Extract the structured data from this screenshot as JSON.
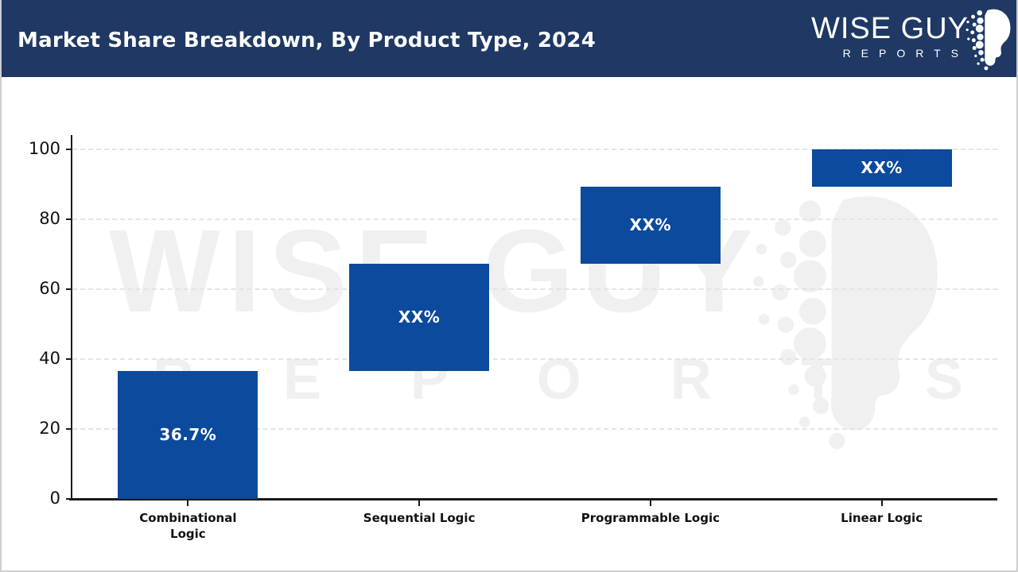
{
  "header": {
    "title": "Market Share Breakdown, By Product Type, 2024",
    "background_color": "#1f3864",
    "logo": {
      "line1": "WISE GUY",
      "line2": "REPORTS",
      "icon": "dotted-head-profile-icon"
    }
  },
  "watermark": {
    "line1": "WISE GUY",
    "line2": "R E P O R T S",
    "icon": "dotted-head-profile-icon",
    "color": "#f0f0f0"
  },
  "chart_data": {
    "type": "bar",
    "subtype": "floating-waterfall",
    "title": "Market Share Breakdown, By Product Type, 2024",
    "categories": [
      "Combinational Logic",
      "Sequential Logic",
      "Programmable Logic",
      "Linear Logic"
    ],
    "category_display": [
      "Combinational\nLogic",
      "Sequential Logic",
      "Programmable Logic",
      "Linear Logic"
    ],
    "series": [
      {
        "name": "Market Share (%)",
        "segments": [
          {
            "category": "Combinational Logic",
            "start": 0,
            "end": 36.7,
            "label": "36.7%"
          },
          {
            "category": "Sequential Logic",
            "start": 36.7,
            "end": 67.2,
            "label": "XX%"
          },
          {
            "category": "Programmable Logic",
            "start": 67.2,
            "end": 89.4,
            "label": "XX%"
          },
          {
            "category": "Linear Logic",
            "start": 89.4,
            "end": 100,
            "label": "XX%"
          }
        ]
      }
    ],
    "xlabel": "",
    "ylabel": "",
    "ylim": [
      0,
      105
    ],
    "yticks": [
      0,
      20,
      40,
      60,
      80,
      100
    ],
    "grid": "horizontal-dashed",
    "legend": "none",
    "bar_color": "#0b4a9c",
    "bar_label_color": "#ffffff",
    "axis_color": "#1a1a1a",
    "grid_color": "#e4e4e4"
  }
}
